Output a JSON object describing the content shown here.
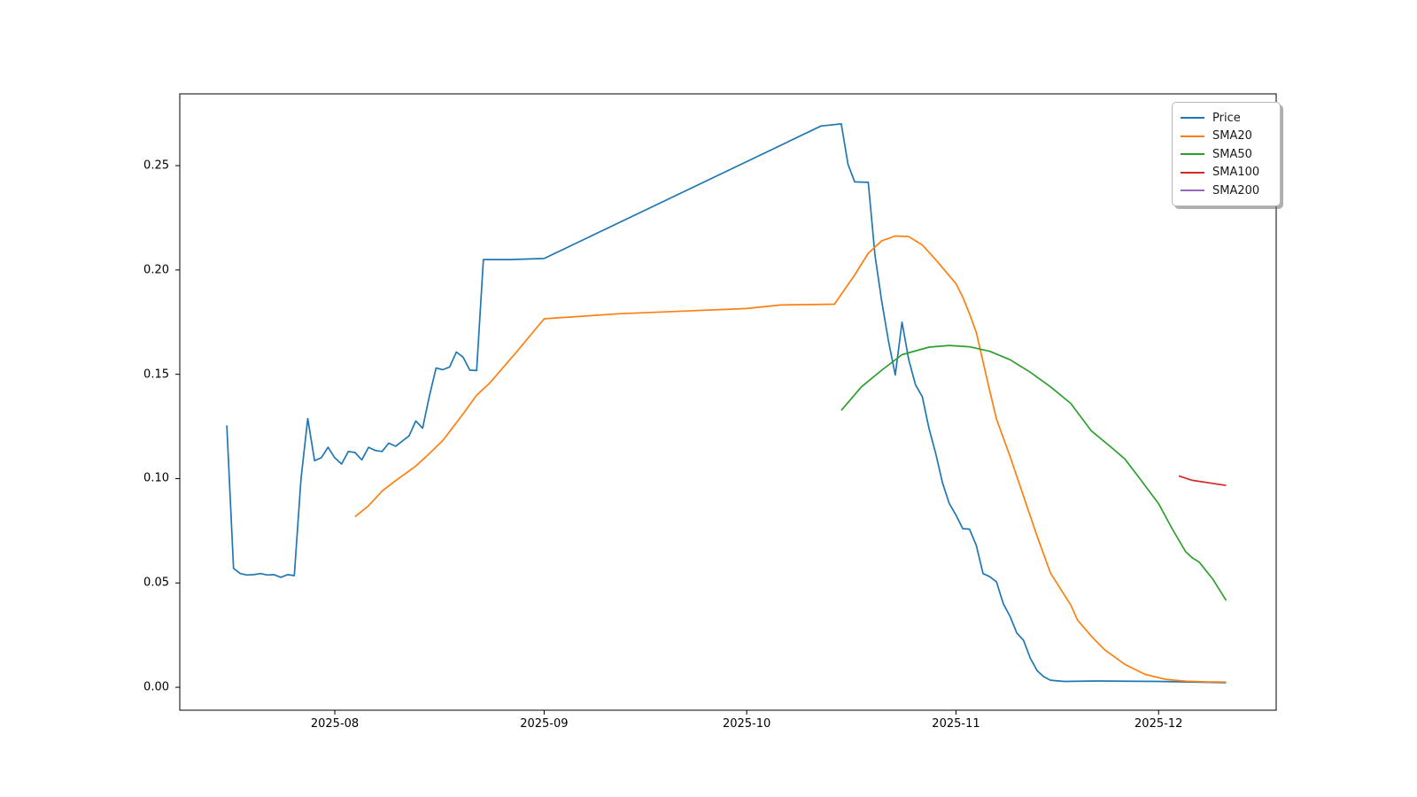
{
  "chart_data": {
    "type": "line",
    "title": "",
    "xlabel": "",
    "ylabel": "",
    "grid": false,
    "x_axis": {
      "lim": [
        "2025-07-09T01:00:00Z",
        "2025-12-18T10:00:00Z"
      ],
      "ticks": [
        {
          "label": "2025-08",
          "date": "2025-08-01"
        },
        {
          "label": "2025-09",
          "date": "2025-09-01"
        },
        {
          "label": "2025-10",
          "date": "2025-10-01"
        },
        {
          "label": "2025-11",
          "date": "2025-11-01"
        },
        {
          "label": "2025-12",
          "date": "2025-12-01"
        }
      ]
    },
    "y_axis": {
      "lim": [
        -0.011,
        0.2844
      ],
      "ticks": [
        {
          "label": "0.00",
          "value": 0.0
        },
        {
          "label": "0.05",
          "value": 0.05
        },
        {
          "label": "0.10",
          "value": 0.1
        },
        {
          "label": "0.15",
          "value": 0.15
        },
        {
          "label": "0.20",
          "value": 0.2
        },
        {
          "label": "0.25",
          "value": 0.25
        }
      ]
    },
    "legend": {
      "position": "upper right"
    },
    "series": [
      {
        "name": "Price",
        "color": "#1f77b4",
        "points": [
          [
            "2025-07-16",
            0.1255
          ],
          [
            "2025-07-17",
            0.057
          ],
          [
            "2025-07-18",
            0.0545
          ],
          [
            "2025-07-19",
            0.0538
          ],
          [
            "2025-07-20",
            0.054
          ],
          [
            "2025-07-21",
            0.0545
          ],
          [
            "2025-07-22",
            0.0538
          ],
          [
            "2025-07-23",
            0.054
          ],
          [
            "2025-07-24",
            0.0527
          ],
          [
            "2025-07-25",
            0.054
          ],
          [
            "2025-07-26",
            0.0535
          ],
          [
            "2025-07-27",
            0.1
          ],
          [
            "2025-07-28",
            0.1288
          ],
          [
            "2025-07-29",
            0.1086
          ],
          [
            "2025-07-30",
            0.11
          ],
          [
            "2025-07-31",
            0.115
          ],
          [
            "2025-08-01",
            0.11
          ],
          [
            "2025-08-02",
            0.107
          ],
          [
            "2025-08-03",
            0.113
          ],
          [
            "2025-08-04",
            0.1125
          ],
          [
            "2025-08-05",
            0.109
          ],
          [
            "2025-08-06",
            0.115
          ],
          [
            "2025-08-07",
            0.1135
          ],
          [
            "2025-08-08",
            0.113
          ],
          [
            "2025-08-09",
            0.117
          ],
          [
            "2025-08-10",
            0.1155
          ],
          [
            "2025-08-11",
            0.118
          ],
          [
            "2025-08-12",
            0.1205
          ],
          [
            "2025-08-13",
            0.1276
          ],
          [
            "2025-08-14",
            0.1242
          ],
          [
            "2025-08-15",
            0.1395
          ],
          [
            "2025-08-16",
            0.153
          ],
          [
            "2025-08-17",
            0.1522
          ],
          [
            "2025-08-18",
            0.1535
          ],
          [
            "2025-08-19",
            0.1607
          ],
          [
            "2025-08-20",
            0.1582
          ],
          [
            "2025-08-21",
            0.152
          ],
          [
            "2025-08-22",
            0.1518
          ],
          [
            "2025-08-23",
            0.205
          ],
          [
            "2025-08-27",
            0.205
          ],
          [
            "2025-09-01",
            0.2055
          ],
          [
            "2025-10-12",
            0.269
          ],
          [
            "2025-10-15",
            0.27
          ],
          [
            "2025-10-16",
            0.2507
          ],
          [
            "2025-10-17",
            0.2422
          ],
          [
            "2025-10-19",
            0.242
          ],
          [
            "2025-10-20",
            0.207
          ],
          [
            "2025-10-21",
            0.185
          ],
          [
            "2025-10-22",
            0.166
          ],
          [
            "2025-10-23",
            0.1497
          ],
          [
            "2025-10-24",
            0.175
          ],
          [
            "2025-10-25",
            0.157
          ],
          [
            "2025-10-26",
            0.145
          ],
          [
            "2025-10-27",
            0.1393
          ],
          [
            "2025-10-28",
            0.124
          ],
          [
            "2025-10-29",
            0.112
          ],
          [
            "2025-10-30",
            0.098
          ],
          [
            "2025-10-31",
            0.088
          ],
          [
            "2025-11-01",
            0.0825
          ],
          [
            "2025-11-02",
            0.076
          ],
          [
            "2025-11-03",
            0.0758
          ],
          [
            "2025-11-04",
            0.068
          ],
          [
            "2025-11-05",
            0.0545
          ],
          [
            "2025-11-06",
            0.053
          ],
          [
            "2025-11-07",
            0.0505
          ],
          [
            "2025-11-08",
            0.04
          ],
          [
            "2025-11-09",
            0.034
          ],
          [
            "2025-11-10",
            0.026
          ],
          [
            "2025-11-11",
            0.0225
          ],
          [
            "2025-11-12",
            0.014
          ],
          [
            "2025-11-13",
            0.008
          ],
          [
            "2025-11-14",
            0.005
          ],
          [
            "2025-11-15",
            0.0034
          ],
          [
            "2025-11-17",
            0.0028
          ],
          [
            "2025-11-22",
            0.003
          ],
          [
            "2025-12-01",
            0.0028
          ],
          [
            "2025-12-11",
            0.0022
          ]
        ]
      },
      {
        "name": "SMA20",
        "color": "#ff7f0e",
        "points": [
          [
            "2025-08-04",
            0.0818
          ],
          [
            "2025-08-06",
            0.087
          ],
          [
            "2025-08-08",
            0.094
          ],
          [
            "2025-08-10",
            0.099
          ],
          [
            "2025-08-13",
            0.106
          ],
          [
            "2025-08-15",
            0.112
          ],
          [
            "2025-08-17",
            0.1183
          ],
          [
            "2025-08-20",
            0.131
          ],
          [
            "2025-08-22",
            0.14
          ],
          [
            "2025-08-24",
            0.146
          ],
          [
            "2025-08-28",
            0.161
          ],
          [
            "2025-09-01",
            0.1766
          ],
          [
            "2025-09-12",
            0.179
          ],
          [
            "2025-10-01",
            0.1815
          ],
          [
            "2025-10-06",
            0.1832
          ],
          [
            "2025-10-14",
            0.1836
          ],
          [
            "2025-10-17",
            0.1976
          ],
          [
            "2025-10-19",
            0.208
          ],
          [
            "2025-10-21",
            0.214
          ],
          [
            "2025-10-23",
            0.2163
          ],
          [
            "2025-10-25",
            0.216
          ],
          [
            "2025-10-27",
            0.212
          ],
          [
            "2025-10-29",
            0.2049
          ],
          [
            "2025-11-01",
            0.1934
          ],
          [
            "2025-11-02",
            0.187
          ],
          [
            "2025-11-03",
            0.179
          ],
          [
            "2025-11-04",
            0.17
          ],
          [
            "2025-11-05",
            0.156
          ],
          [
            "2025-11-06",
            0.142
          ],
          [
            "2025-11-07",
            0.1285
          ],
          [
            "2025-11-09",
            0.1107
          ],
          [
            "2025-11-11",
            0.0916
          ],
          [
            "2025-11-13",
            0.0725
          ],
          [
            "2025-11-15",
            0.0547
          ],
          [
            "2025-11-18",
            0.0394
          ],
          [
            "2025-11-19",
            0.0322
          ],
          [
            "2025-11-21",
            0.0246
          ],
          [
            "2025-11-23",
            0.018
          ],
          [
            "2025-11-26",
            0.011
          ],
          [
            "2025-11-29",
            0.0062
          ],
          [
            "2025-12-02",
            0.0038
          ],
          [
            "2025-12-05",
            0.0029
          ],
          [
            "2025-12-08",
            0.0026
          ],
          [
            "2025-12-11",
            0.0025
          ]
        ]
      },
      {
        "name": "SMA50",
        "color": "#2ca02c",
        "points": [
          [
            "2025-10-15",
            0.1327
          ],
          [
            "2025-10-18",
            0.144
          ],
          [
            "2025-10-21",
            0.152
          ],
          [
            "2025-10-24",
            0.1594
          ],
          [
            "2025-10-28",
            0.163
          ],
          [
            "2025-10-31",
            0.1638
          ],
          [
            "2025-11-03",
            0.1632
          ],
          [
            "2025-11-06",
            0.161
          ],
          [
            "2025-11-09",
            0.157
          ],
          [
            "2025-11-12",
            0.151
          ],
          [
            "2025-11-15",
            0.144
          ],
          [
            "2025-11-18",
            0.136
          ],
          [
            "2025-11-21",
            0.123
          ],
          [
            "2025-11-24",
            0.115
          ],
          [
            "2025-11-26",
            0.1094
          ],
          [
            "2025-11-28",
            0.101
          ],
          [
            "2025-12-01",
            0.088
          ],
          [
            "2025-12-03",
            0.076
          ],
          [
            "2025-12-05",
            0.065
          ],
          [
            "2025-12-06",
            0.062
          ],
          [
            "2025-12-07",
            0.06
          ],
          [
            "2025-12-09",
            0.052
          ],
          [
            "2025-12-11",
            0.0416
          ]
        ]
      },
      {
        "name": "SMA100",
        "color": "#d62728",
        "points": [
          [
            "2025-12-04",
            0.1013
          ],
          [
            "2025-12-06",
            0.0992
          ],
          [
            "2025-12-11",
            0.0967
          ]
        ]
      },
      {
        "name": "SMA200",
        "color": "#9467bd",
        "points": []
      }
    ]
  }
}
